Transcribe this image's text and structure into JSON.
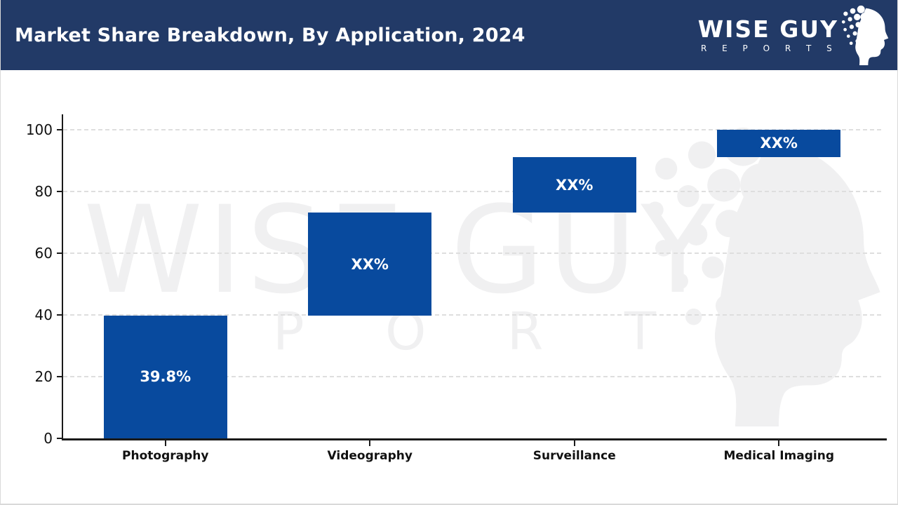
{
  "header": {
    "title": "Market Share Breakdown, By Application, 2024",
    "logo": {
      "line1": "WISE GUY",
      "line2": "R E P O R T S"
    }
  },
  "watermark": {
    "line1": "WISE GUY",
    "line2": "P O R T S"
  },
  "chart_data": {
    "type": "bar",
    "subtype": "waterfall",
    "title": "Market Share Breakdown, By Application, 2024",
    "categories": [
      "Photography",
      "Videography",
      "Surveillance",
      "Medical Imaging"
    ],
    "series": [
      {
        "name": "Photography",
        "start": 0,
        "end": 39.8,
        "label": "39.8%"
      },
      {
        "name": "Videography",
        "start": 39.8,
        "end": 73.1,
        "label": "XX%"
      },
      {
        "name": "Surveillance",
        "start": 73.1,
        "end": 91.2,
        "label": "XX%"
      },
      {
        "name": "Medical Imaging",
        "start": 91.2,
        "end": 100,
        "label": "XX%"
      }
    ],
    "yticks": [
      0,
      20,
      40,
      60,
      80,
      100
    ],
    "ylim": [
      0,
      105
    ],
    "xlabel": "",
    "ylabel": "",
    "grid": "horizontal-dashed",
    "legend": "none",
    "bar_color": "#084a9e",
    "bar_label_color": "#ffffff",
    "axis_color": "#1a1a1a",
    "header_color": "#223a67"
  }
}
